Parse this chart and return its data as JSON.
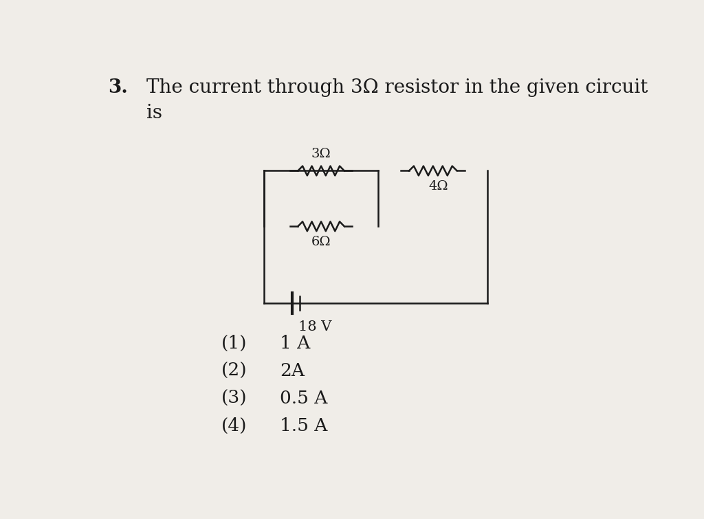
{
  "title_number": "3.",
  "title_line1": "The current through 3Ω resistor in the given circuit",
  "title_line2": "is",
  "options_num": [
    "(1)",
    "(2)",
    "(3)",
    "(4)"
  ],
  "options_val": [
    "1 A",
    "2A",
    "0.5 A",
    "1.5 A"
  ],
  "bg_color": "#f0ede8",
  "text_color": "#1a1a1a",
  "r3_label": "3Ω",
  "r6_label": "6Ω",
  "r4_label": "4Ω",
  "battery_label": "18 V",
  "lw": 1.8
}
